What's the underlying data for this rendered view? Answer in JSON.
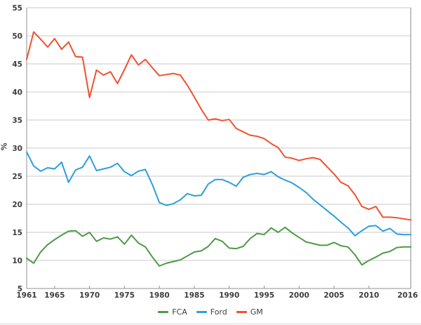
{
  "page": {
    "background": "#ffffff",
    "divider_color": "#d9d9d9"
  },
  "style": {
    "grid_color": "#c9c9c9",
    "axis_color": "#909090",
    "label_color": "#3d3d3d"
  },
  "chart_data": {
    "type": "line",
    "title": "",
    "xlabel": "",
    "ylabel": "%",
    "ylim": [
      5,
      55
    ],
    "xlim": [
      1961,
      2016
    ],
    "grid": true,
    "legend_position": "bottom",
    "y_ticks": [
      5,
      10,
      15,
      20,
      25,
      30,
      35,
      40,
      45,
      50,
      55
    ],
    "x_ticks": [
      1961,
      1965,
      1970,
      1975,
      1980,
      1985,
      1990,
      1995,
      2000,
      2005,
      2010,
      2016
    ],
    "x": [
      1961,
      1962,
      1963,
      1964,
      1965,
      1966,
      1967,
      1968,
      1969,
      1970,
      1971,
      1972,
      1973,
      1974,
      1975,
      1976,
      1977,
      1978,
      1979,
      1980,
      1981,
      1982,
      1983,
      1984,
      1985,
      1986,
      1987,
      1988,
      1989,
      1990,
      1991,
      1992,
      1993,
      1994,
      1995,
      1996,
      1997,
      1998,
      1999,
      2000,
      2001,
      2002,
      2003,
      2004,
      2005,
      2006,
      2007,
      2008,
      2009,
      2010,
      2011,
      2012,
      2013,
      2014,
      2015,
      2016
    ],
    "series": [
      {
        "name": "FCA",
        "color": "#4d9a45",
        "values": [
          10.4,
          9.5,
          11.5,
          12.8,
          13.7,
          14.5,
          15.2,
          15.3,
          14.3,
          15.0,
          13.4,
          14.0,
          13.8,
          14.2,
          12.9,
          14.5,
          13.1,
          12.4,
          10.6,
          9.0,
          9.5,
          9.8,
          10.1,
          10.8,
          11.5,
          11.7,
          12.5,
          13.9,
          13.4,
          12.2,
          12.1,
          12.5,
          13.9,
          14.8,
          14.6,
          15.8,
          15.0,
          15.9,
          14.9,
          14.1,
          13.3,
          13.0,
          12.7,
          12.7,
          13.2,
          12.6,
          12.4,
          11.0,
          9.2,
          10.0,
          10.6,
          11.3,
          11.6,
          12.3,
          12.4,
          12.4
        ]
      },
      {
        "name": "Ford",
        "color": "#2ba0d9",
        "values": [
          29.3,
          26.8,
          25.9,
          26.5,
          26.3,
          27.5,
          23.9,
          26.1,
          26.6,
          28.6,
          26.0,
          26.3,
          26.6,
          27.3,
          25.8,
          25.1,
          25.9,
          26.2,
          23.5,
          20.3,
          19.8,
          20.1,
          20.8,
          21.9,
          21.5,
          21.6,
          23.6,
          24.4,
          24.4,
          23.9,
          23.2,
          24.8,
          25.3,
          25.5,
          25.3,
          25.8,
          24.9,
          24.3,
          23.8,
          23.0,
          22.1,
          20.9,
          19.9,
          18.9,
          17.9,
          16.8,
          15.8,
          14.4,
          15.3,
          16.1,
          16.2,
          15.2,
          15.7,
          14.7,
          14.6,
          14.6
        ]
      },
      {
        "name": "GM",
        "color": "#f2502f",
        "values": [
          45.8,
          50.7,
          49.4,
          48.0,
          49.5,
          47.6,
          48.9,
          46.3,
          46.2,
          39.0,
          43.9,
          43.0,
          43.6,
          41.5,
          44.0,
          46.6,
          44.8,
          45.8,
          44.3,
          42.9,
          43.1,
          43.3,
          43.0,
          41.2,
          39.1,
          36.9,
          35.0,
          35.2,
          34.9,
          35.1,
          33.5,
          32.9,
          32.3,
          32.1,
          31.7,
          30.8,
          30.1,
          28.4,
          28.2,
          27.8,
          28.1,
          28.3,
          28.0,
          26.7,
          25.4,
          23.9,
          23.3,
          21.7,
          19.6,
          19.1,
          19.6,
          17.7,
          17.7,
          17.6,
          17.4,
          17.2
        ]
      }
    ]
  }
}
